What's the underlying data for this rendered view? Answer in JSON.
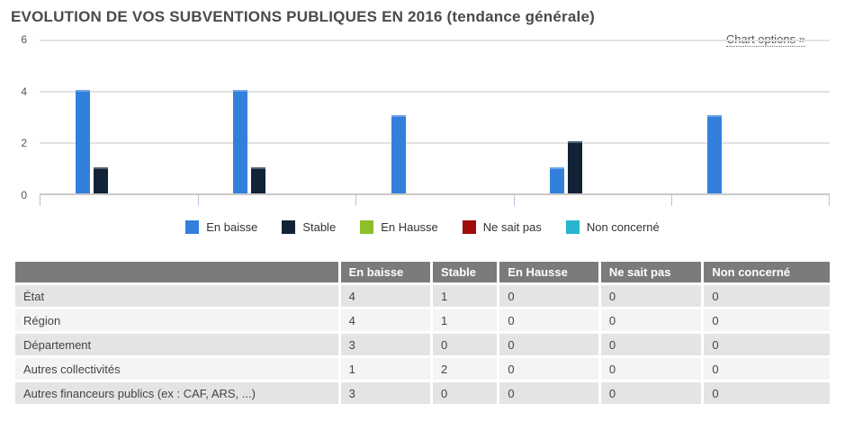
{
  "page": {
    "title": "EVOLUTION DE VOS SUBVENTIONS PUBLIQUES EN 2016 (tendance générale)",
    "chart_options_label": "Chart options »"
  },
  "colors": {
    "en_baisse": "#3380DC",
    "stable": "#122337",
    "en_hausse": "#8CBF2A",
    "ne_sait_pas": "#9E0C0C",
    "non_concerne": "#2AB5CE",
    "gridline": "#e2e2e2",
    "axis_baseline": "#c9c9c9",
    "category_tick": "#b3c6dd",
    "table_header_bg": "#7b7b7b",
    "row_odd_bg": "#e4e4e4",
    "row_even_bg": "#f4f4f4"
  },
  "chart_data": {
    "type": "bar",
    "title": "EVOLUTION DE VOS SUBVENTIONS PUBLIQUES EN 2016 (tendance générale)",
    "categories": [
      "État",
      "Région",
      "Département",
      "Autres collectivités",
      "Autres financeurs publics (ex : CAF, ARS, ...)"
    ],
    "x_tick_labels_visible": false,
    "series": [
      {
        "name": "En baisse",
        "color": "#3380DC",
        "values": [
          4,
          4,
          3,
          1,
          3
        ]
      },
      {
        "name": "Stable",
        "color": "#122337",
        "values": [
          1,
          1,
          0,
          2,
          0
        ]
      },
      {
        "name": "En Hausse",
        "color": "#8CBF2A",
        "values": [
          0,
          0,
          0,
          0,
          0
        ]
      },
      {
        "name": "Ne sait pas",
        "color": "#9E0C0C",
        "values": [
          0,
          0,
          0,
          0,
          0
        ]
      },
      {
        "name": "Non concerné",
        "color": "#2AB5CE",
        "values": [
          0,
          0,
          0,
          0,
          0
        ]
      }
    ],
    "y_ticks": [
      0,
      2,
      4,
      6
    ],
    "ylim": [
      0,
      6
    ],
    "grid": true,
    "legend_position": "bottom"
  },
  "table": {
    "header": [
      "",
      "En baisse",
      "Stable",
      "En Hausse",
      "Ne sait pas",
      "Non concerné"
    ],
    "rows": [
      {
        "label": "État",
        "values": [
          4,
          1,
          0,
          0,
          0
        ]
      },
      {
        "label": "Région",
        "values": [
          4,
          1,
          0,
          0,
          0
        ]
      },
      {
        "label": "Département",
        "values": [
          3,
          0,
          0,
          0,
          0
        ]
      },
      {
        "label": "Autres collectivités",
        "values": [
          1,
          2,
          0,
          0,
          0
        ]
      },
      {
        "label": "Autres financeurs publics (ex : CAF, ARS, ...)",
        "values": [
          3,
          0,
          0,
          0,
          0
        ]
      }
    ]
  }
}
